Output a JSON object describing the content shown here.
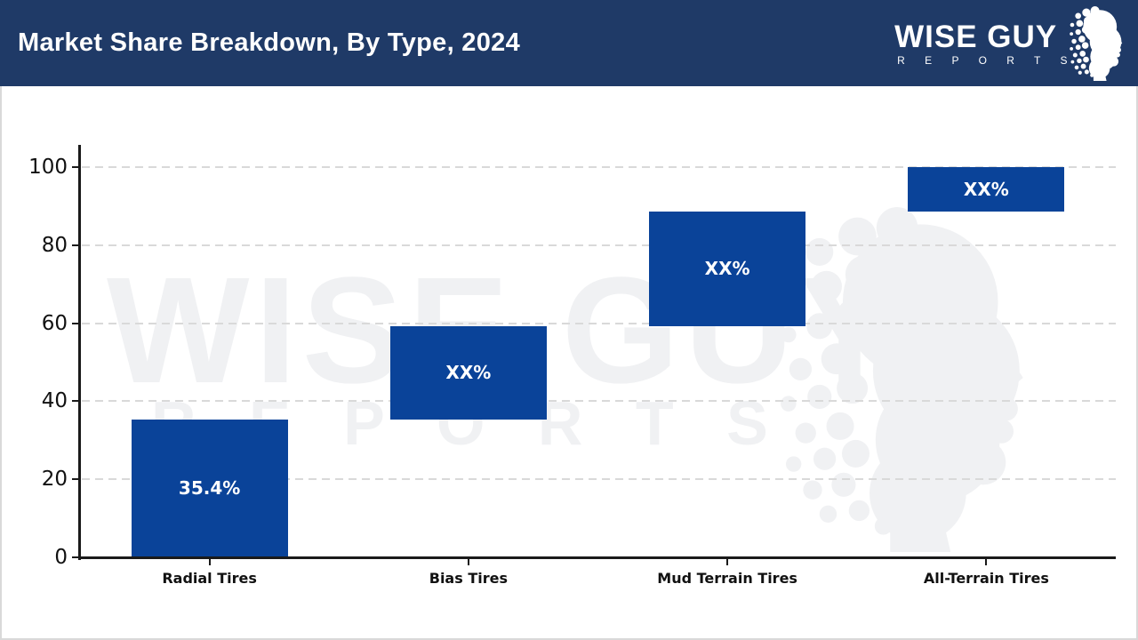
{
  "header": {
    "title": "Market Share Breakdown, By Type, 2024",
    "logo": {
      "name": "WISE GUY",
      "sub": "R E P O R T S"
    }
  },
  "watermark": {
    "name": "WISE GUY",
    "sub": "R E P O R T S"
  },
  "colors": {
    "header_bg": "#1f3a67",
    "bar": "#0a4399",
    "bar_label": "#ffffff",
    "axis": "#1a1a1a",
    "grid": "#d9d9d9",
    "watermark": "#f0f1f3"
  },
  "chart_data": {
    "type": "bar",
    "subtype": "waterfall",
    "title": "Market Share Breakdown, By Type, 2024",
    "categories": [
      "Radial Tires",
      "Bias Tires",
      "Mud Terrain Tires",
      "All-Terrain Tires"
    ],
    "segments": [
      {
        "category": "Radial Tires",
        "start": 0,
        "end": 35.4,
        "label": "35.4%"
      },
      {
        "category": "Bias Tires",
        "start": 35.4,
        "end": 59.3,
        "label": "XX%"
      },
      {
        "category": "Mud Terrain Tires",
        "start": 59.3,
        "end": 88.6,
        "label": "XX%"
      },
      {
        "category": "All-Terrain Tires",
        "start": 88.6,
        "end": 100,
        "label": "XX%"
      }
    ],
    "xlabel": "",
    "ylabel": "",
    "yticks": [
      0,
      20,
      40,
      60,
      80,
      100
    ],
    "ylim": [
      0,
      105.7
    ],
    "grid": "horizontal-dashed",
    "legend": null,
    "bar_color": "#0a4399",
    "bar_label_color": "#ffffff"
  }
}
